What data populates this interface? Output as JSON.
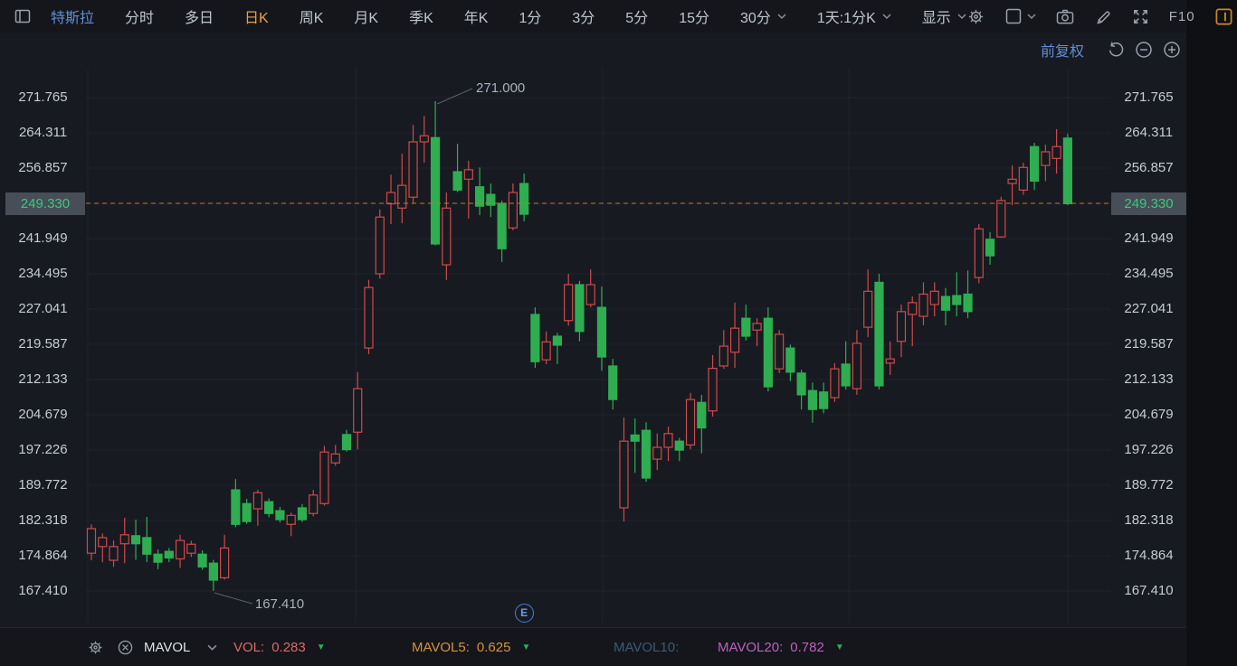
{
  "toolbar": {
    "items": [
      {
        "id": "stock-name",
        "label": "特斯拉",
        "color": "#5f8fd6"
      },
      {
        "id": "minute-view",
        "label": "分时"
      },
      {
        "id": "multi-day",
        "label": "多日"
      },
      {
        "id": "daily-k",
        "label": "日K",
        "active": true
      },
      {
        "id": "weekly-k",
        "label": "周K"
      },
      {
        "id": "monthly-k",
        "label": "月K"
      },
      {
        "id": "quarterly-k",
        "label": "季K"
      },
      {
        "id": "yearly-k",
        "label": "年K"
      },
      {
        "id": "1min",
        "label": "1分"
      },
      {
        "id": "3min",
        "label": "3分"
      },
      {
        "id": "5min",
        "label": "5分"
      },
      {
        "id": "15min",
        "label": "15分"
      },
      {
        "id": "30min",
        "label": "30分",
        "chevron": true
      },
      {
        "id": "combo-period",
        "label": "1天:1分K",
        "chevron": true
      },
      {
        "id": "display-menu",
        "label": "显示",
        "chevron": true
      }
    ],
    "f10_label": "F10",
    "active_color": "#e8a33d",
    "default_color": "#bfc6cf"
  },
  "adjustment": {
    "label": "前复权"
  },
  "legend": {
    "indicator": "MAVOL",
    "items": [
      {
        "id": "vol",
        "label": "VOL:",
        "value": "0.283",
        "color": "#d96a6a",
        "arrow": true,
        "x": 258
      },
      {
        "id": "mavol5",
        "label": "MAVOL5:",
        "value": "0.625",
        "color": "#d6923c",
        "arrow": true,
        "x": 455
      },
      {
        "id": "mavol10",
        "label": "MAVOL10:",
        "value": "",
        "color": "#3d5a76",
        "arrow": false,
        "x": 678
      },
      {
        "id": "mavol20",
        "label": "MAVOL20:",
        "value": "0.782",
        "color": "#c05fc0",
        "arrow": true,
        "x": 793
      }
    ]
  },
  "chart_data": {
    "type": "candlestick",
    "symbol": "特斯拉",
    "period": "日K",
    "convention": "red=up(hollow), green=down(filled)",
    "up_color": "#d04a4a",
    "down_color": "#2fae51",
    "price_line_color": "#bd7a31",
    "grid": true,
    "y_ticks": [
      271.765,
      264.311,
      256.857,
      249.33,
      241.949,
      234.495,
      227.041,
      219.587,
      212.133,
      204.679,
      197.226,
      189.772,
      182.318,
      174.864,
      167.41
    ],
    "current_price": 249.33,
    "current_price_label": "249.330",
    "high_annotation": {
      "label": "271.000",
      "candle_index": 31
    },
    "low_annotation": {
      "label": "167.410",
      "candle_index": 11
    },
    "earnings_marker": {
      "label": "E",
      "candle_index": 39
    },
    "candles": [
      [
        175.4,
        181.5,
        173.9,
        180.6
      ],
      [
        176.8,
        179.6,
        173.5,
        178.7
      ],
      [
        173.9,
        178.1,
        172.5,
        176.8
      ],
      [
        177.4,
        182.9,
        173.3,
        179.3
      ],
      [
        179.1,
        182.5,
        174.0,
        177.4
      ],
      [
        178.7,
        183.1,
        173.5,
        175.2
      ],
      [
        175.2,
        176.2,
        172.0,
        173.5
      ],
      [
        175.8,
        176.5,
        173.5,
        174.4
      ],
      [
        174.2,
        179.3,
        172.3,
        178.1
      ],
      [
        175.4,
        178.0,
        174.6,
        177.3
      ],
      [
        175.2,
        176.0,
        171.9,
        172.5
      ],
      [
        173.3,
        174.0,
        167.41,
        169.7
      ],
      [
        170.2,
        179.3,
        169.8,
        176.5
      ],
      [
        188.8,
        191.1,
        180.9,
        181.5
      ],
      [
        185.9,
        186.9,
        181.6,
        182.1
      ],
      [
        184.8,
        188.8,
        181.2,
        188.2
      ],
      [
        186.3,
        187.0,
        183.0,
        183.8
      ],
      [
        184.4,
        185.2,
        181.9,
        182.5
      ],
      [
        181.5,
        184.0,
        179.0,
        183.4
      ],
      [
        185.0,
        185.8,
        182.0,
        182.5
      ],
      [
        183.8,
        188.8,
        183.2,
        187.7
      ],
      [
        185.9,
        198.1,
        185.5,
        196.8
      ],
      [
        194.5,
        198.3,
        193.9,
        196.4
      ],
      [
        200.5,
        201.5,
        196.9,
        197.3
      ],
      [
        201.0,
        213.7,
        197.4,
        210.2
      ],
      [
        218.8,
        233.2,
        217.5,
        231.6
      ],
      [
        234.5,
        248.1,
        233.5,
        246.5
      ],
      [
        249.3,
        255.5,
        245.0,
        251.7
      ],
      [
        248.4,
        259.9,
        245.2,
        253.2
      ],
      [
        250.7,
        266.0,
        249.5,
        262.4
      ],
      [
        262.4,
        267.9,
        258.0,
        263.7
      ],
      [
        263.3,
        271.0,
        240.5,
        240.8
      ],
      [
        236.4,
        251.7,
        233.2,
        248.4
      ],
      [
        256.1,
        262.0,
        251.8,
        252.2
      ],
      [
        254.5,
        258.4,
        246.2,
        256.5
      ],
      [
        252.9,
        257.0,
        246.9,
        248.8
      ],
      [
        251.3,
        253.6,
        246.5,
        249.0
      ],
      [
        249.4,
        250.0,
        237.0,
        239.8
      ],
      [
        244.2,
        253.6,
        243.7,
        251.7
      ],
      [
        253.6,
        255.7,
        245.6,
        247.1
      ],
      [
        225.9,
        227.4,
        214.6,
        215.9
      ],
      [
        216.3,
        222.3,
        215.4,
        220.1
      ],
      [
        221.3,
        222.0,
        215.4,
        219.4
      ],
      [
        224.6,
        234.5,
        223.5,
        232.2
      ],
      [
        232.2,
        233.0,
        220.2,
        222.3
      ],
      [
        228.0,
        235.4,
        227.4,
        232.2
      ],
      [
        227.4,
        231.8,
        214.0,
        216.9
      ],
      [
        215.0,
        216.5,
        205.8,
        207.9
      ],
      [
        185.0,
        204.1,
        182.1,
        199.1
      ],
      [
        200.4,
        203.9,
        192.4,
        199.1
      ],
      [
        201.4,
        203.1,
        190.5,
        191.3
      ],
      [
        195.3,
        200.7,
        193.0,
        197.8
      ],
      [
        197.8,
        202.2,
        194.9,
        200.7
      ],
      [
        199.1,
        199.8,
        194.9,
        197.2
      ],
      [
        198.3,
        209.3,
        197.4,
        207.9
      ],
      [
        207.3,
        208.9,
        196.5,
        201.9
      ],
      [
        205.5,
        217.3,
        204.3,
        214.5
      ],
      [
        215.0,
        222.6,
        214.4,
        219.2
      ],
      [
        217.9,
        228.4,
        214.6,
        223.0
      ],
      [
        225.1,
        228.0,
        220.4,
        221.3
      ],
      [
        222.6,
        225.1,
        219.2,
        224.0
      ],
      [
        225.1,
        227.4,
        209.6,
        210.6
      ],
      [
        214.4,
        222.6,
        213.5,
        221.7
      ],
      [
        218.8,
        219.5,
        211.8,
        213.7
      ],
      [
        213.5,
        214.2,
        205.8,
        208.9
      ],
      [
        209.8,
        211.5,
        203.0,
        205.8
      ],
      [
        209.5,
        211.5,
        205.0,
        206.0
      ],
      [
        208.3,
        215.6,
        207.4,
        214.4
      ],
      [
        215.4,
        220.2,
        210.0,
        210.8
      ],
      [
        210.2,
        222.6,
        208.9,
        219.8
      ],
      [
        223.2,
        235.4,
        221.1,
        230.8
      ],
      [
        232.7,
        234.5,
        210.0,
        210.8
      ],
      [
        215.6,
        220.2,
        213.1,
        216.5
      ],
      [
        220.2,
        228.0,
        216.9,
        226.5
      ],
      [
        225.9,
        229.7,
        219.2,
        228.4
      ],
      [
        225.5,
        232.7,
        223.6,
        230.2
      ],
      [
        228.0,
        232.7,
        225.5,
        230.8
      ],
      [
        229.7,
        231.5,
        223.6,
        226.8
      ],
      [
        229.9,
        234.8,
        225.5,
        228.0
      ],
      [
        230.2,
        235.2,
        225.1,
        226.5
      ],
      [
        233.7,
        245.0,
        232.5,
        244.0
      ],
      [
        241.8,
        243.3,
        236.4,
        238.3
      ],
      [
        242.3,
        250.8,
        242.1,
        250.0
      ],
      [
        253.6,
        257.4,
        249.0,
        254.5
      ],
      [
        252.2,
        258.0,
        251.2,
        257.0
      ],
      [
        261.4,
        262.2,
        252.2,
        254.1
      ],
      [
        257.4,
        261.8,
        254.1,
        260.3
      ],
      [
        258.9,
        265.1,
        255.7,
        261.4
      ],
      [
        263.2,
        264.1,
        249.0,
        249.33
      ]
    ]
  }
}
